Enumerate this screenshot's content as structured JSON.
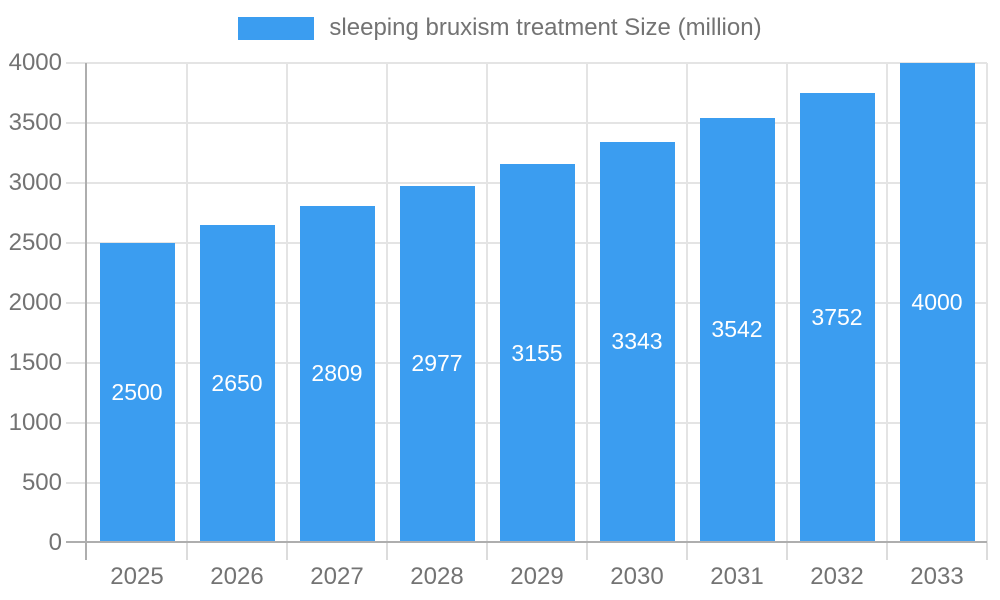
{
  "legend": {
    "label": "sleeping bruxism treatment Size (million)"
  },
  "colors": {
    "bar": "#3B9DF0",
    "bar_label": "#FFFFFF",
    "axis_text": "#737373",
    "grid": "#E4E4E4",
    "tick": "#DCDCDC",
    "axis_line": "#AEAEAE"
  },
  "chart_data": {
    "type": "bar",
    "title": "",
    "categories": [
      "2025",
      "2026",
      "2027",
      "2028",
      "2029",
      "2030",
      "2031",
      "2032",
      "2033"
    ],
    "values": [
      2500,
      2650,
      2809,
      2977,
      3155,
      3343,
      3542,
      3752,
      4000
    ],
    "series_name": "sleeping bruxism treatment Size (million)",
    "xlabel": "",
    "ylabel": "",
    "ylim": [
      0,
      4000
    ],
    "ytick_step": 500,
    "yticks": [
      "0",
      "500",
      "1000",
      "1500",
      "2000",
      "2500",
      "3000",
      "3500",
      "4000"
    ],
    "grid": true,
    "legend_position": "top-center",
    "value_labels": "inside-center-white"
  }
}
